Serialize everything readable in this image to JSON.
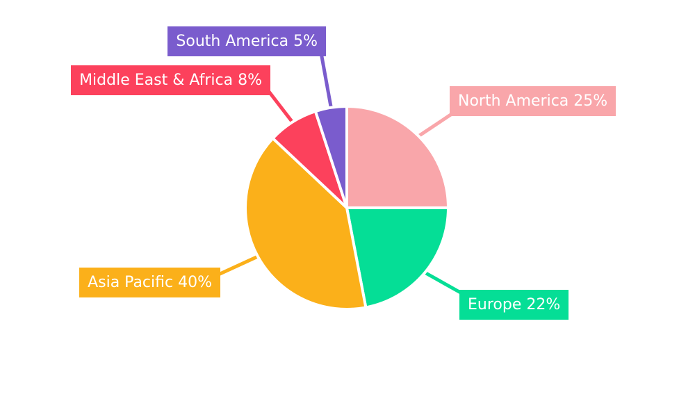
{
  "chart_data": {
    "type": "pie",
    "title": "",
    "background": "#FFFFFF",
    "label_text_color": "#FFFFFF",
    "start_angle_deg": 0,
    "direction": "clockwise",
    "slice_gap_color": "#FFFFFF",
    "legend_position": "callout-labels",
    "segments": [
      {
        "label": "North America",
        "value": 25,
        "color": "#F9A6AA",
        "display": "North America 25%"
      },
      {
        "label": "Europe",
        "value": 22,
        "color": "#05DE96",
        "display": "Europe 22%"
      },
      {
        "label": "Asia Pacific",
        "value": 40,
        "color": "#FBB01A",
        "display": "Asia Pacific 40%"
      },
      {
        "label": "Middle East & Africa",
        "value": 8,
        "color": "#FC415C",
        "display": "Middle East & Africa 8%"
      },
      {
        "label": "South America",
        "value": 5,
        "color": "#7A5CCD",
        "display": "South America 5%"
      }
    ]
  }
}
